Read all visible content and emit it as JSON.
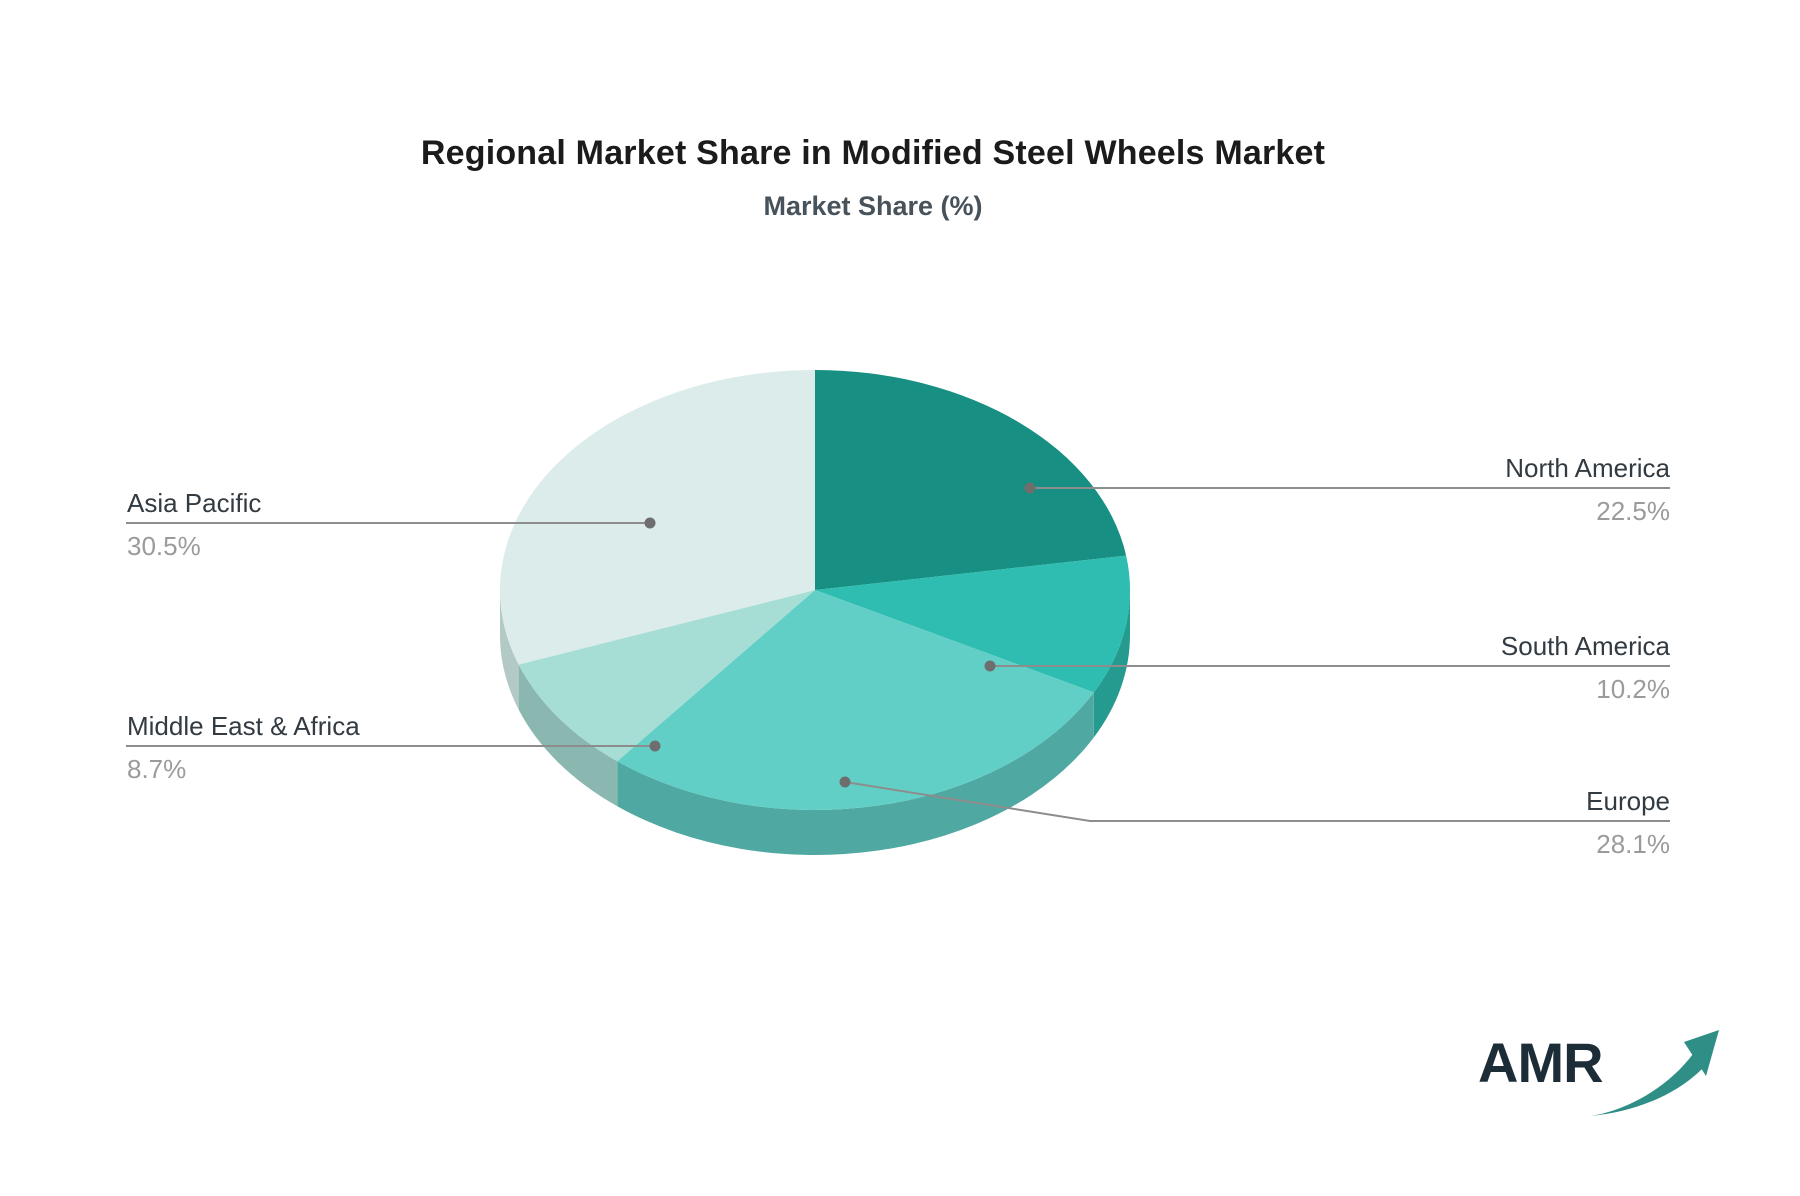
{
  "title": "Regional Market Share in Modified Steel Wheels Market",
  "subtitle": "Market Share (%)",
  "logo": {
    "text": "AMR"
  },
  "colors": {
    "background": "#ffffff",
    "title_color": "#1b1b1b",
    "subtitle_color": "#47525b",
    "label_color": "#323a42",
    "value_color": "#9b9b9b",
    "leader_line": "#8d8d8d",
    "leader_dot": "#6e6e6e",
    "logo_text": "#1d2d38",
    "logo_arrow": "#2f8e85"
  },
  "chart_data": {
    "type": "pie",
    "title": "Regional Market Share in Modified Steel Wheels Market",
    "subtitle": "Market Share (%)",
    "unit": "%",
    "style": "3d",
    "start_angle_deg": 0,
    "direction": "clockwise",
    "legend_position": "none",
    "slices": [
      {
        "label": "North America",
        "value": 22.5,
        "display": "22.5%",
        "color": "#178f82",
        "side_color": "#11766c"
      },
      {
        "label": "South America",
        "value": 10.2,
        "display": "10.2%",
        "color": "#2ebdb0",
        "side_color": "#259a8f"
      },
      {
        "label": "Europe",
        "value": 28.1,
        "display": "28.1%",
        "color": "#62cfc7",
        "side_color": "#4fa8a2"
      },
      {
        "label": "Middle East & Africa",
        "value": 8.7,
        "display": "8.7%",
        "color": "#a6ded6",
        "side_color": "#8ab7b0"
      },
      {
        "label": "Asia Pacific",
        "value": 30.5,
        "display": "30.5%",
        "color": "#dceceb",
        "side_color": "#b3c9c6"
      }
    ]
  }
}
